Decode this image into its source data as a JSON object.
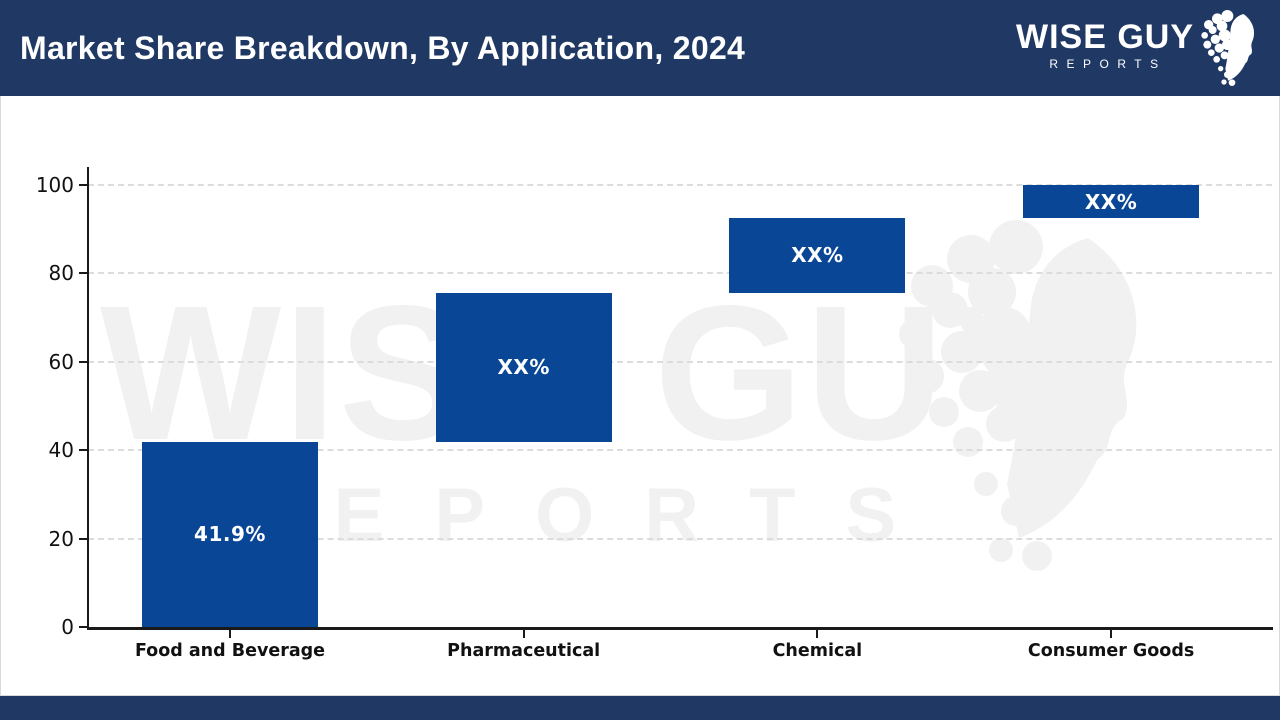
{
  "header": {
    "title": "Market Share Breakdown, By Application, 2024",
    "logo": {
      "line1": "WISE GUY",
      "line2": "REPORTS"
    },
    "bg_color": "#1f3864"
  },
  "footer": {
    "bg_color": "#1f3864"
  },
  "watermark": {
    "line1": "WISE GUY",
    "line2": "REPORTS"
  },
  "chart_data": {
    "type": "bar",
    "subtype": "waterfall",
    "title": "Market Share Breakdown, By Application, 2024",
    "xlabel": "",
    "ylabel": "",
    "categories": [
      "Food and Beverage",
      "Pharmaceutical",
      "Chemical",
      "Consumer Goods"
    ],
    "series": [
      {
        "name": "Market share %",
        "values": [
          41.9,
          33.7,
          16.9,
          7.5
        ]
      }
    ],
    "segments": [
      {
        "category": "Food and Beverage",
        "start": 0,
        "end": 41.9,
        "label": "41.9%"
      },
      {
        "category": "Pharmaceutical",
        "start": 41.9,
        "end": 75.6,
        "label": "XX%"
      },
      {
        "category": "Chemical",
        "start": 75.6,
        "end": 92.5,
        "label": "XX%"
      },
      {
        "category": "Consumer Goods",
        "start": 92.5,
        "end": 100,
        "label": "XX%"
      }
    ],
    "yticks": [
      0,
      20,
      40,
      60,
      80,
      100
    ],
    "ylim": [
      0,
      104
    ],
    "grid": "horizontal-dashed",
    "legend": "none",
    "bar_color": "#0a4696",
    "label_color": "#ffffff"
  }
}
